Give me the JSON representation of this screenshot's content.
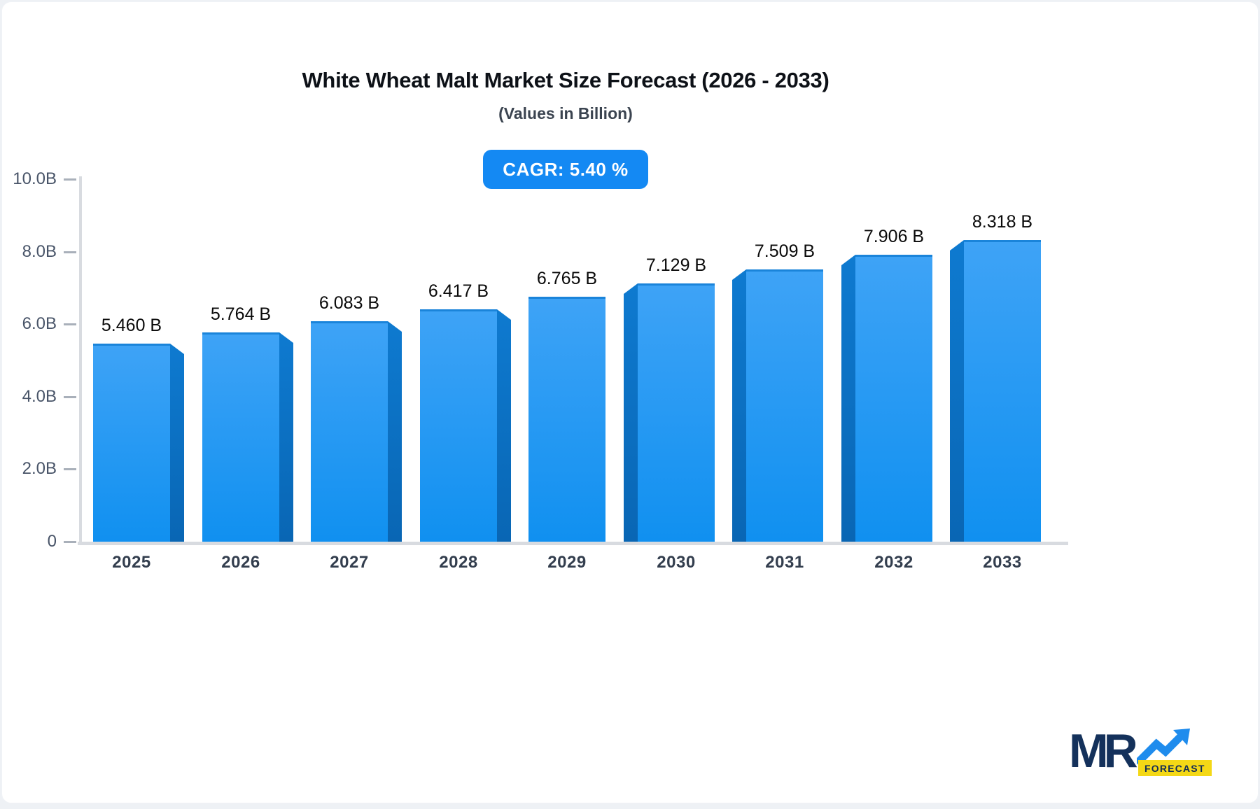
{
  "header": {
    "title": "White Wheat Malt Market Size Forecast (2026 - 2033)",
    "subtitle": "(Values in Billion)",
    "cagr_badge": "CAGR: 5.40 %"
  },
  "chart_data": {
    "type": "bar",
    "title": "White Wheat Malt Market Size Forecast (2026 - 2033)",
    "subtitle": "(Values in Billion)",
    "cagr": "5.40 %",
    "categories": [
      "2025",
      "2026",
      "2027",
      "2028",
      "2029",
      "2030",
      "2031",
      "2032",
      "2033"
    ],
    "values": [
      5.46,
      5.764,
      6.083,
      6.417,
      6.765,
      7.129,
      7.509,
      7.906,
      8.318
    ],
    "value_labels": [
      "5.460 B",
      "5.764 B",
      "6.083 B",
      "6.417 B",
      "6.765 B",
      "7.129 B",
      "7.509 B",
      "7.906 B",
      "8.318 B"
    ],
    "xlabel": "",
    "ylabel": "",
    "ylim": [
      0,
      10
    ],
    "yticks": [
      0,
      2,
      4,
      6,
      8,
      10
    ],
    "ytick_labels": [
      "0",
      "2.0B",
      "4.0B",
      "6.0B",
      "8.0B",
      "10.0B"
    ],
    "grid": false,
    "legend": false,
    "unit": "Billion",
    "bar_color_top": "#3ea3f6",
    "bar_color_bottom": "#1090f0",
    "bar_side_color": "#0b6fc5",
    "badge_color": "#1489f3"
  },
  "logo": {
    "mr": "MR",
    "forecast": "FORECAST"
  }
}
